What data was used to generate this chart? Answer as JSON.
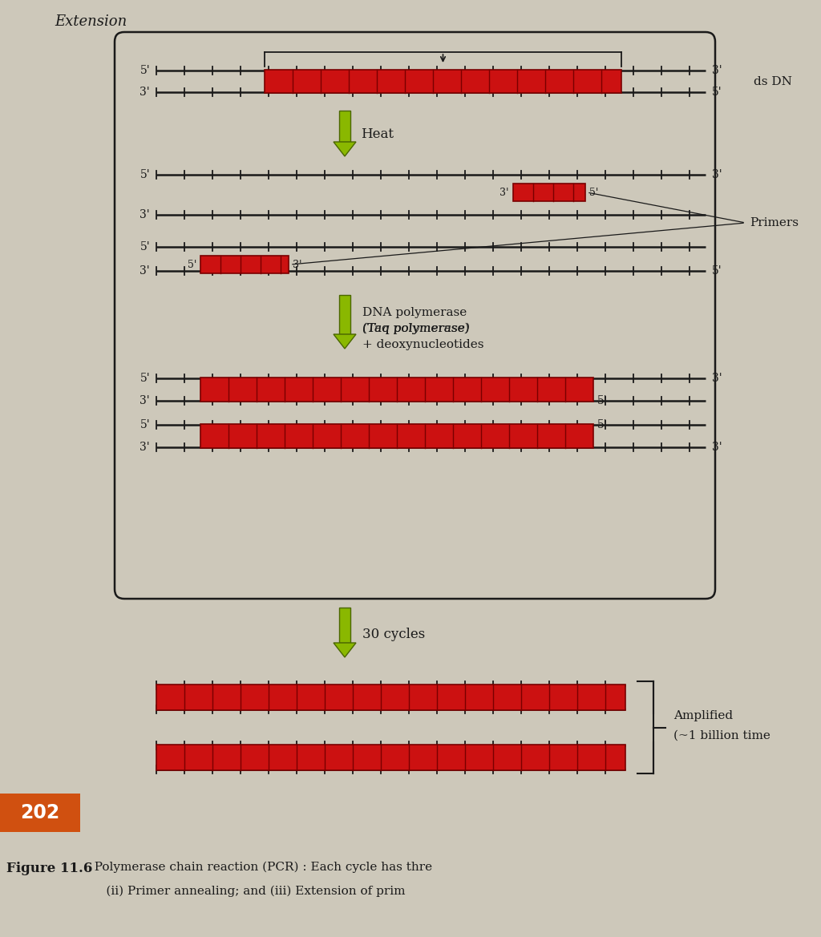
{
  "bg_color": "#cdc8ba",
  "red_fill": "#cc1111",
  "red_edge": "#7a0000",
  "line_color": "#1a1a1a",
  "arrow_color": "#8ab800",
  "arrow_edge": "#4a6600",
  "title_label": "Extension",
  "ds_dna_label": "ds DN",
  "primers_label": "Primers",
  "heat_label": "Heat",
  "dna_poly_line1": "DNA polymerase",
  "dna_poly_line2": "(Taq polymerase)",
  "dna_poly_line3": "+ deoxynucleotides",
  "cycles_label": "30 cycles",
  "amplified_line1": "Amplified",
  "amplified_line2": "(~1 billion time",
  "fig_label": "Figure 11.6",
  "fig_text1": "  Polymerase chain reaction (PCR) : Each cycle has thre",
  "fig_text2": "     (ii) Primer annealing; and (iii) Extension of prim",
  "page_num": "202",
  "box_color": "#d05010"
}
